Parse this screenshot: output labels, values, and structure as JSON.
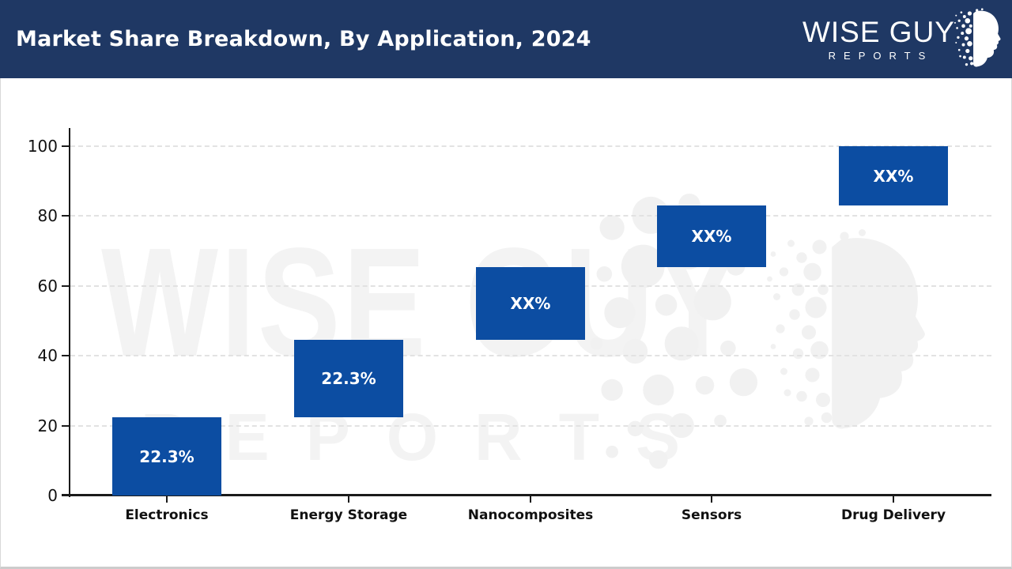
{
  "header": {
    "title": "Market Share Breakdown, By Application, 2024",
    "logo": {
      "line1": "WISE GUY",
      "line2": "REPORTS"
    }
  },
  "watermark": {
    "line1": "WISE GUY",
    "line2": "REPORTS"
  },
  "chart_data": {
    "type": "bar",
    "variant": "waterfall",
    "title": "Market Share Breakdown, By Application, 2024",
    "categories": [
      "Electronics",
      "Energy Storage",
      "Nanocomposites",
      "Sensors",
      "Drug Delivery"
    ],
    "segments": [
      {
        "category": "Electronics",
        "start": 0,
        "end": 22.3,
        "label": "22.3%"
      },
      {
        "category": "Energy Storage",
        "start": 22.3,
        "end": 44.6,
        "label": "22.3%"
      },
      {
        "category": "Nanocomposites",
        "start": 44.6,
        "end": 65.3,
        "label": "XX%"
      },
      {
        "category": "Sensors",
        "start": 65.3,
        "end": 83.0,
        "label": "XX%"
      },
      {
        "category": "Drug Delivery",
        "start": 83.0,
        "end": 100,
        "label": "XX%"
      }
    ],
    "yticks": [
      0,
      20,
      40,
      60,
      80,
      100
    ],
    "ylim": [
      0,
      105
    ],
    "xlabel": "",
    "ylabel": "",
    "grid": "horizontal-dashed",
    "legend": "none",
    "colors": {
      "bar": "#0C4DA2",
      "bar_label": "#FFFFFF",
      "axis": "#1A1A1A",
      "grid": "#E2E2E2",
      "header_bg": "#1F3864",
      "watermark": "#F3F3F3"
    }
  }
}
